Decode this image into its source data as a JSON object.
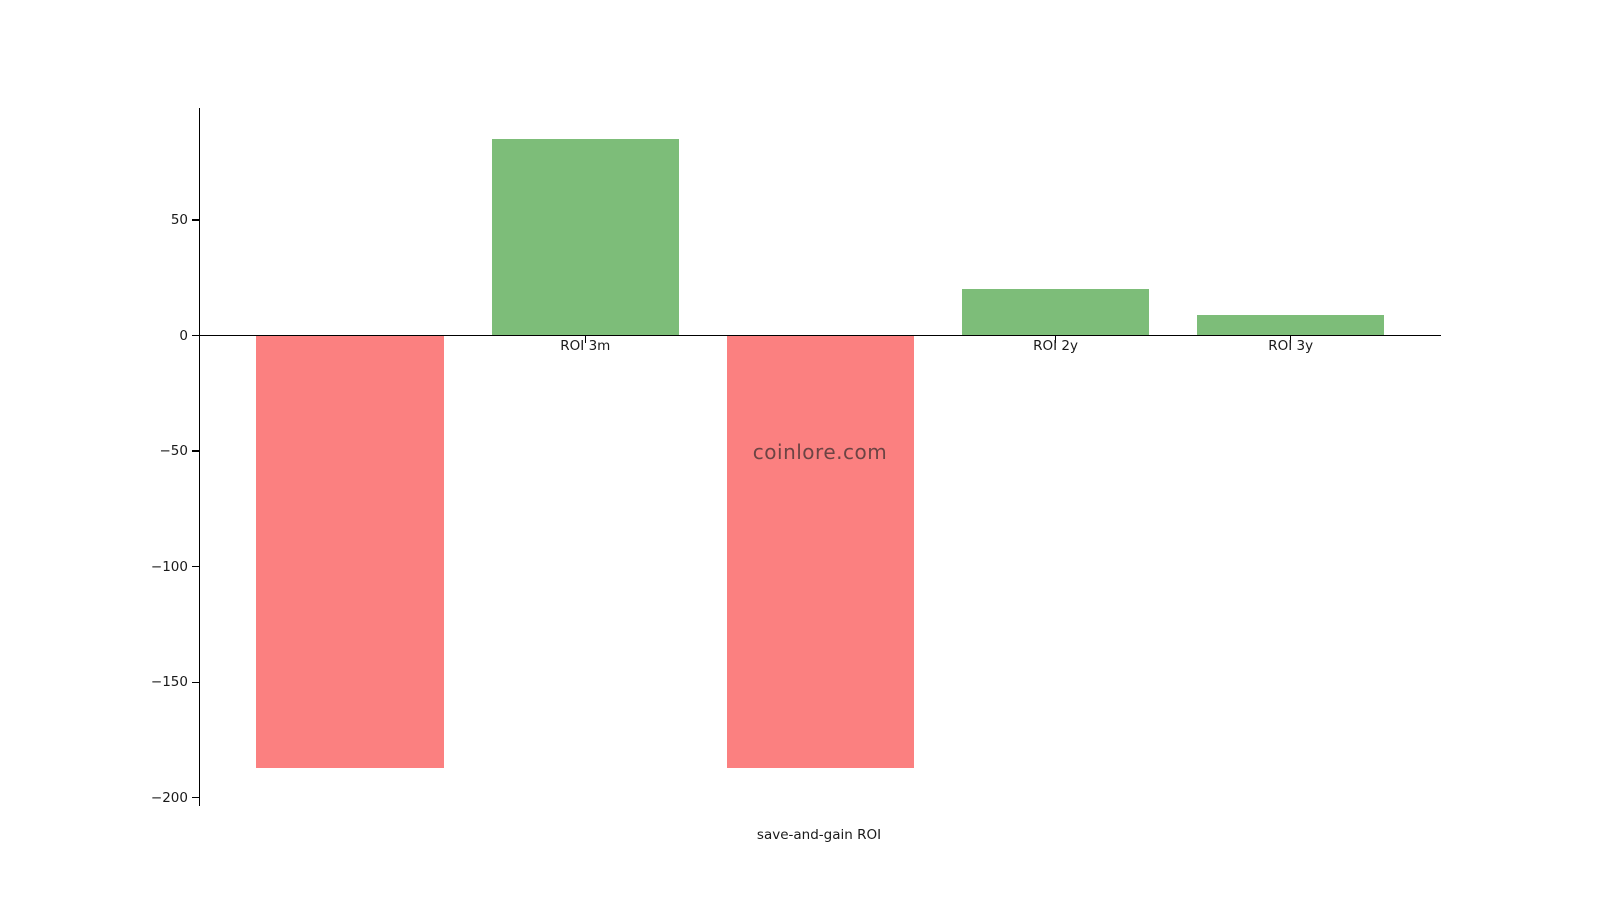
{
  "chart_data": {
    "type": "bar",
    "title": "",
    "xlabel": "save-and-gain ROI",
    "ylabel": "",
    "categories": [
      "",
      "ROI 3m",
      "",
      "ROI 2y",
      "ROI 3y"
    ],
    "values": [
      -187,
      85,
      -187,
      20,
      9
    ],
    "y_ticks": [
      50,
      0,
      -50,
      -100,
      -150,
      -200
    ],
    "y_tick_labels": [
      "50",
      "0",
      "−50",
      "−100",
      "−150",
      "−200"
    ],
    "ylim": [
      -203,
      98
    ],
    "grid": false,
    "legend_position": "none",
    "colors": {
      "positive": "#7dbd79",
      "negative": "#fb8080",
      "axis": "#000000",
      "tick_text": "#1a1a1a"
    },
    "watermark": "coinlore.com"
  }
}
